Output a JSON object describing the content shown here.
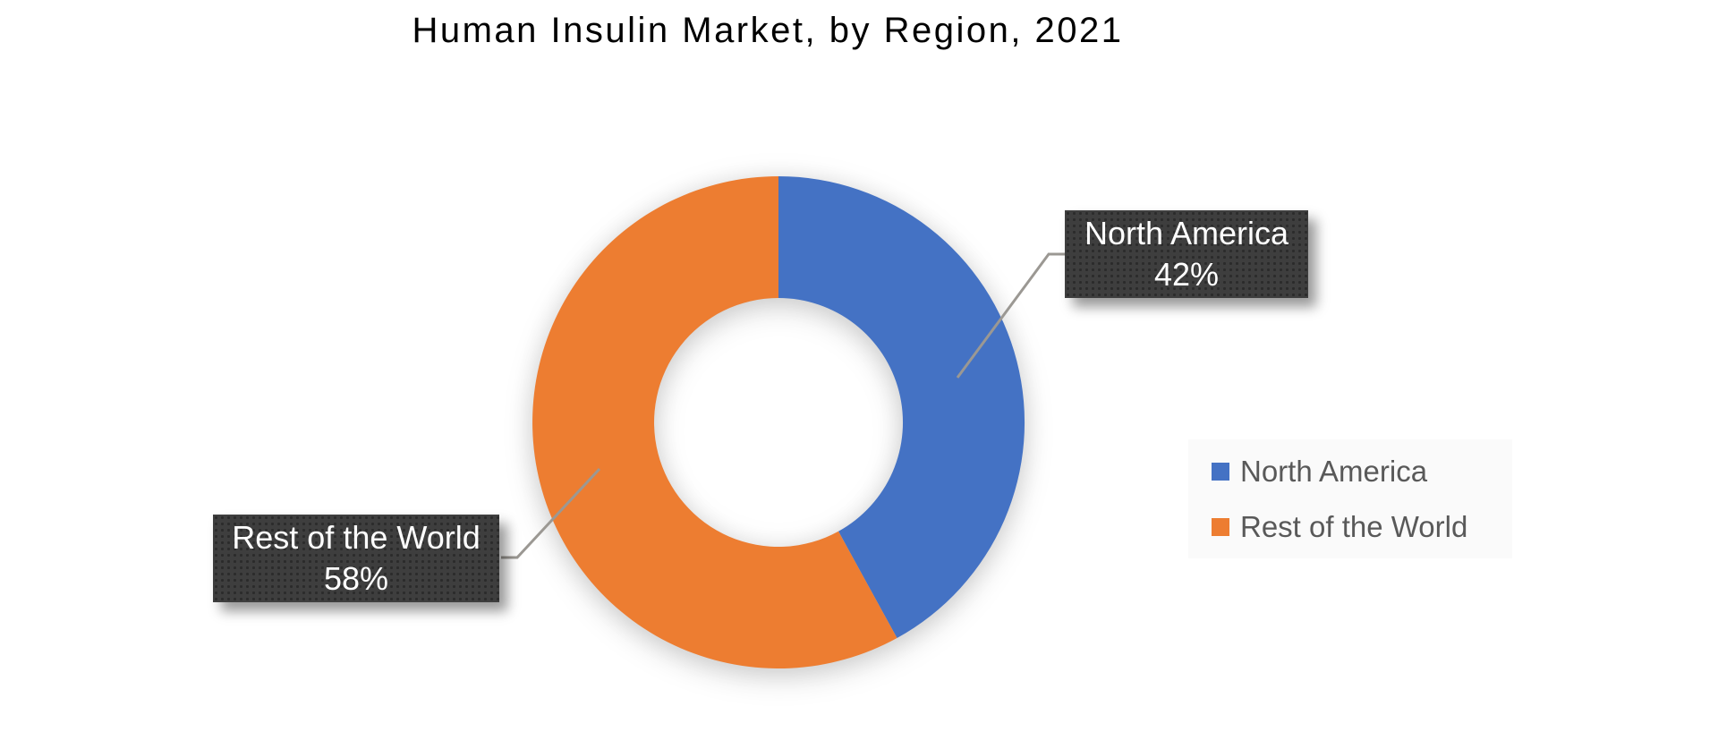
{
  "title": "Human Insulin Market, by Region, 2021",
  "chart_data": {
    "type": "pie",
    "subtype": "donut",
    "title": "Human Insulin Market, by Region, 2021",
    "categories": [
      "North America",
      "Rest of the World"
    ],
    "values": [
      42,
      58
    ],
    "unit": "percent",
    "data_labels": [
      "42%",
      "58%"
    ],
    "colors": [
      "#4472C4",
      "#ED7D31"
    ],
    "start_angle_deg": 0,
    "direction": "clockwise",
    "hole_ratio": 0.5,
    "legend_position": "right"
  },
  "callouts": [
    {
      "label": "North America",
      "value": "42%"
    },
    {
      "label": "Rest of the World",
      "value": "58%"
    }
  ],
  "legend": {
    "items": [
      {
        "label": "North America",
        "color": "#4472C4"
      },
      {
        "label": "Rest of the World",
        "color": "#ED7D31"
      }
    ]
  },
  "colors": {
    "slice_north_america": "#4472C4",
    "slice_rest_of_world": "#ED7D31",
    "callout_background": "#3E3E3E",
    "callout_dot_pattern": "#2B2B2B",
    "callout_text": "#FFFFFF",
    "leader_line": "#9B9893",
    "legend_text": "#595959",
    "legend_background": "#FAFAFA",
    "title_text": "#000000",
    "page_background": "#FFFFFF"
  }
}
